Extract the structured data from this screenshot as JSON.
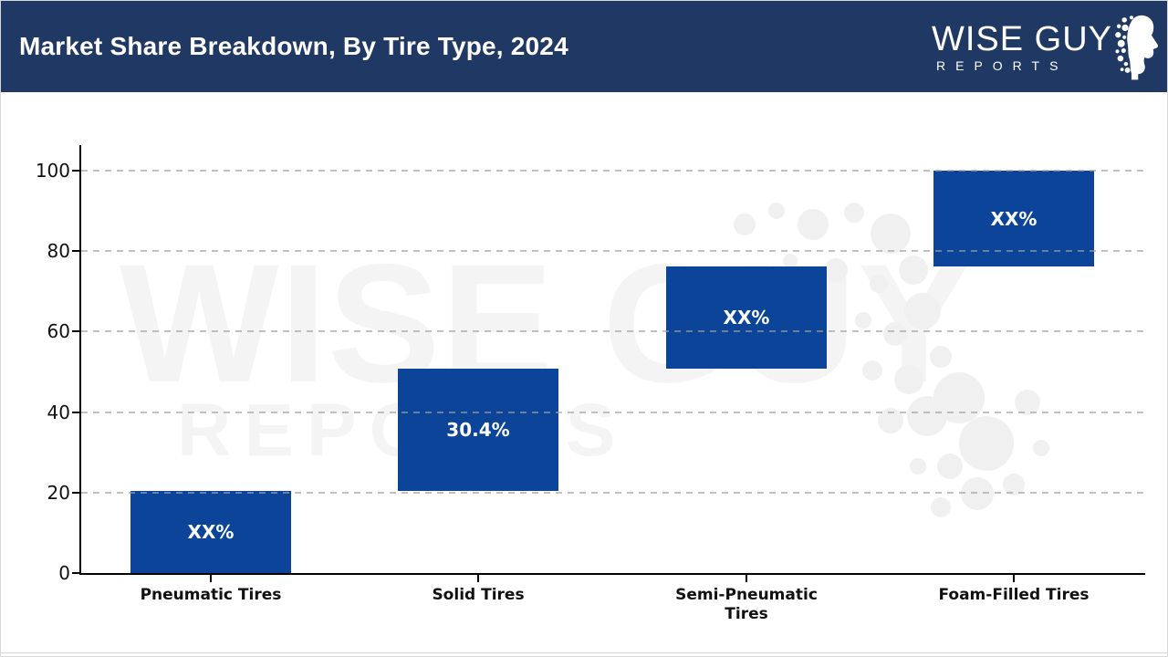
{
  "header": {
    "title": "Market Share Breakdown, By Tire Type, 2024",
    "bg_color": "#203864",
    "logo": {
      "wordmark": "WISE GUY",
      "subtext": "REPORTS",
      "icon": "dotted-face-profile-icon"
    }
  },
  "watermark": {
    "wordmark": "WISE GUY",
    "subtext": "REPORTS"
  },
  "chart_data": {
    "type": "bar",
    "subtype": "floating-waterfall",
    "title": "Market Share Breakdown, By Tire Type, 2024",
    "categories": [
      "Pneumatic Tires",
      "Solid Tires",
      "Semi-Pneumatic\nTires",
      "Foam-Filled Tires"
    ],
    "segments": [
      {
        "category": "Pneumatic Tires",
        "start": 0,
        "end": 20.4,
        "label": "XX%"
      },
      {
        "category": "Solid Tires",
        "start": 20.4,
        "end": 50.8,
        "label": "30.4%"
      },
      {
        "category": "Semi-Pneumatic Tires",
        "start": 50.8,
        "end": 76.1,
        "label": "XX%"
      },
      {
        "category": "Foam-Filled Tires",
        "start": 76.1,
        "end": 100,
        "label": "XX%"
      }
    ],
    "yticks": [
      0,
      20,
      40,
      60,
      80,
      100
    ],
    "ylim": [
      0,
      105
    ],
    "xlabel": "",
    "ylabel": "",
    "grid": {
      "horizontal": true,
      "style": "dashed"
    },
    "legend": null,
    "bar_color": "#0b4499",
    "bar_label_color": "#ffffff",
    "axis_color": "#000000"
  }
}
